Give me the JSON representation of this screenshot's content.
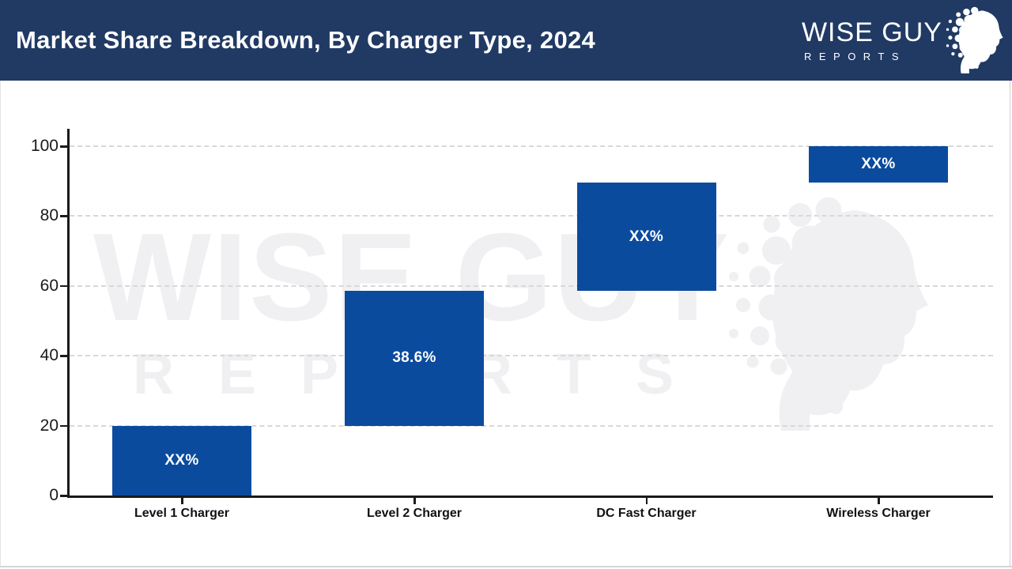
{
  "header": {
    "title": "Market Share Breakdown, By Charger Type, 2024",
    "logo": {
      "line1": "WISE GUY",
      "line2": "REPORTS"
    }
  },
  "watermark": {
    "line1": "WISE GUY",
    "line2": "REPORTS"
  },
  "colors": {
    "header_bg": "#203a64",
    "bar": "#0b4b9e",
    "bar_label": "#ffffff",
    "gridline": "#d8d8d8",
    "axis": "#1a1a1a",
    "watermark": "#f0f0f2",
    "page_bg": "#ffffff"
  },
  "chart_data": {
    "type": "bar",
    "subtype": "waterfall",
    "title": "Market Share Breakdown, By Charger Type, 2024",
    "xlabel": "",
    "ylabel": "",
    "categories": [
      "Level 1 Charger",
      "Level 2 Charger",
      "DC Fast Charger",
      "Wireless Charger"
    ],
    "segments": [
      {
        "category": "Level 1 Charger",
        "start": 0,
        "end": 20,
        "label": "XX%"
      },
      {
        "category": "Level 2 Charger",
        "start": 20,
        "end": 58.6,
        "label": "38.6%",
        "value": 38.6
      },
      {
        "category": "DC Fast Charger",
        "start": 58.6,
        "end": 89.5,
        "label": "XX%"
      },
      {
        "category": "Wireless Charger",
        "start": 89.5,
        "end": 100,
        "label": "XX%"
      }
    ],
    "yticks": [
      0,
      20,
      40,
      60,
      80,
      100
    ],
    "ylim": [
      0,
      105
    ],
    "grid": "horizontal-dashed",
    "legend": "none"
  }
}
